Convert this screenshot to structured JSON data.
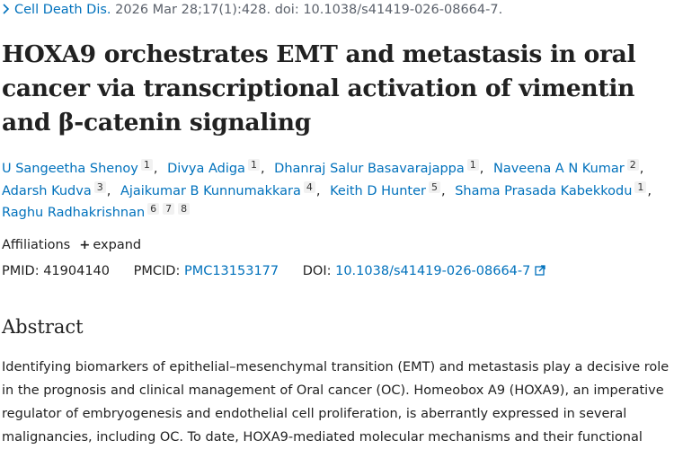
{
  "citation": {
    "journal": "Cell Death Dis.",
    "details": "2026 Mar 28;17(1):428. doi: 10.1038/s41419-026-08664-7."
  },
  "title": "HOXA9 orchestrates EMT and metastasis in oral cancer via transcriptional activation of vimentin and β-catenin signaling",
  "authors": [
    {
      "name": "U Sangeetha Shenoy",
      "affiliations": [
        "1"
      ]
    },
    {
      "name": "Divya Adiga",
      "affiliations": [
        "1"
      ]
    },
    {
      "name": "Dhanraj Salur Basavarajappa",
      "affiliations": [
        "1"
      ]
    },
    {
      "name": "Naveena A N Kumar",
      "affiliations": [
        "2"
      ]
    },
    {
      "name": "Adarsh Kudva",
      "affiliations": [
        "3"
      ]
    },
    {
      "name": "Ajaikumar B Kunnumakkara",
      "affiliations": [
        "4"
      ]
    },
    {
      "name": "Keith D Hunter",
      "affiliations": [
        "5"
      ]
    },
    {
      "name": "Shama Prasada Kabekkodu",
      "affiliations": [
        "1"
      ]
    },
    {
      "name": "Raghu Radhakrishnan",
      "affiliations": [
        "6",
        "7",
        "8"
      ]
    }
  ],
  "affiliations": {
    "label": "Affiliations",
    "expand": "expand"
  },
  "ids": {
    "pmid_label": "PMID:",
    "pmid": "41904140",
    "pmcid_label": "PMCID:",
    "pmcid": "PMC13153177",
    "doi_label": "DOI:",
    "doi": "10.1038/s41419-026-08664-7"
  },
  "abstract": {
    "heading": "Abstract",
    "text": "Identifying biomarkers of epithelial–mesenchymal transition (EMT) and metastasis play a decisive role in the prognosis and clinical management of Oral cancer (OC). Homeobox A9 (HOXA9), an imperative regulator of embryogenesis and endothelial cell proliferation, is aberrantly expressed in several malignancies, including OC. To date, HOXA9-mediated molecular mechanisms and their functional"
  }
}
